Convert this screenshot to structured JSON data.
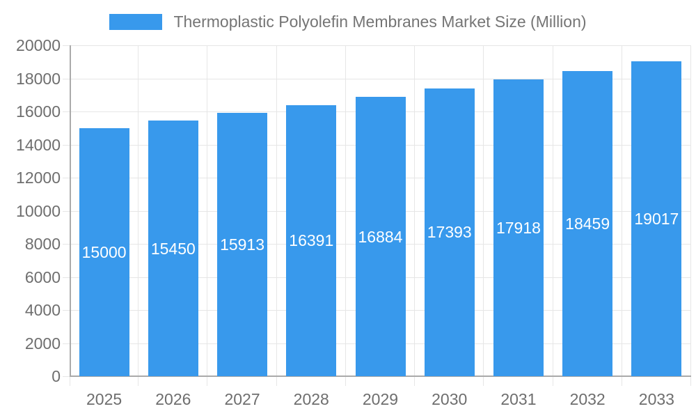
{
  "chart_data": {
    "type": "bar",
    "title": "",
    "xlabel": "",
    "ylabel": "",
    "categories": [
      "2025",
      "2026",
      "2027",
      "2028",
      "2029",
      "2030",
      "2031",
      "2032",
      "2033"
    ],
    "series": [
      {
        "name": "Thermoplastic Polyolefin Membranes Market Size (Million)",
        "values": [
          15000,
          15450,
          15913,
          16391,
          16884,
          17393,
          17918,
          18459,
          19017
        ]
      }
    ],
    "ylim": [
      0,
      20000
    ],
    "ytick_step": 2000,
    "ytick_labels": [
      "0",
      "2000",
      "4000",
      "6000",
      "8000",
      "10000",
      "12000",
      "14000",
      "16000",
      "18000",
      "20000"
    ],
    "grid": true,
    "legend_position": "top-center",
    "value_labels": "inside-middle",
    "colors": {
      "bar": "#3899EC",
      "bar_value_label": "#FFFFFF",
      "grid_line": "#E6E6E6",
      "axis_line": "#AAAAAA",
      "axis_text": "#6E6E6E",
      "legend_text": "#757575",
      "background": "#FFFFFF"
    }
  }
}
